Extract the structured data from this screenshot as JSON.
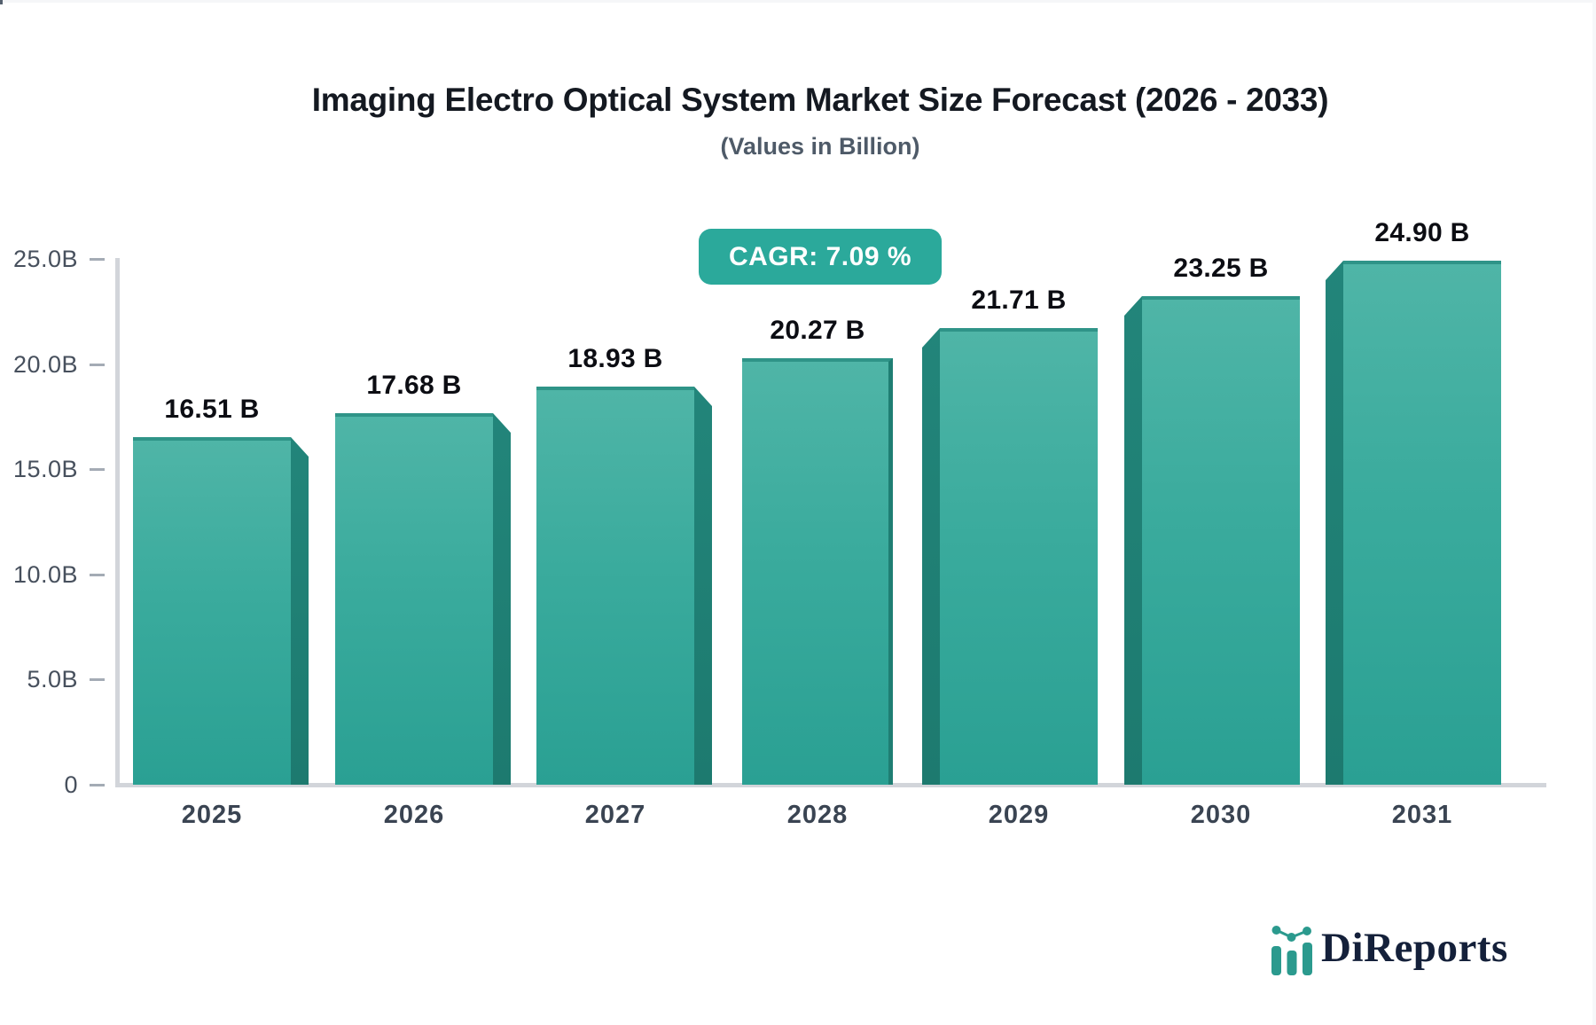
{
  "brand": {
    "name": "DiReports",
    "icon": "mini-bar-line-chart-icon"
  },
  "colors": {
    "accent_teal": "#2ba99b",
    "bar_face_top": "#4fb5a7",
    "bar_face_bottom": "#2aa093",
    "bar_side_dark": "#1f7e73",
    "axis_line": "#d2d5da",
    "tick_dash": "#a4abb5",
    "title_text": "#141921",
    "subtitle_text": "#4e5a68",
    "axis_label_text": "#47505d",
    "brand_navy": "#14203a"
  },
  "chart_data": {
    "type": "bar",
    "title": "Imaging Electro Optical System Market Size Forecast (2026 - 2033)",
    "subtitle": "(Values in Billion)",
    "cagr_annotation": "CAGR: 7.09 %",
    "categories": [
      "2025",
      "2026",
      "2027",
      "2028",
      "2029",
      "2030",
      "2031"
    ],
    "values": [
      16.51,
      17.68,
      18.93,
      20.27,
      21.71,
      23.25,
      24.9
    ],
    "value_labels": [
      "16.51 B",
      "17.68 B",
      "18.93 B",
      "20.27 B",
      "21.71 B",
      "23.25 B",
      "24.90 B"
    ],
    "series_unit": "Billion",
    "y_axis": {
      "tick_labels": [
        "25.0B",
        "20.0B",
        "15.0B",
        "10.0B",
        "5.0B",
        "0"
      ],
      "tick_values": [
        25,
        20,
        15,
        10,
        5,
        0
      ],
      "range": [
        0,
        25
      ]
    },
    "grid": false,
    "legend": false,
    "bar_style": "3d-teal-gradient"
  }
}
